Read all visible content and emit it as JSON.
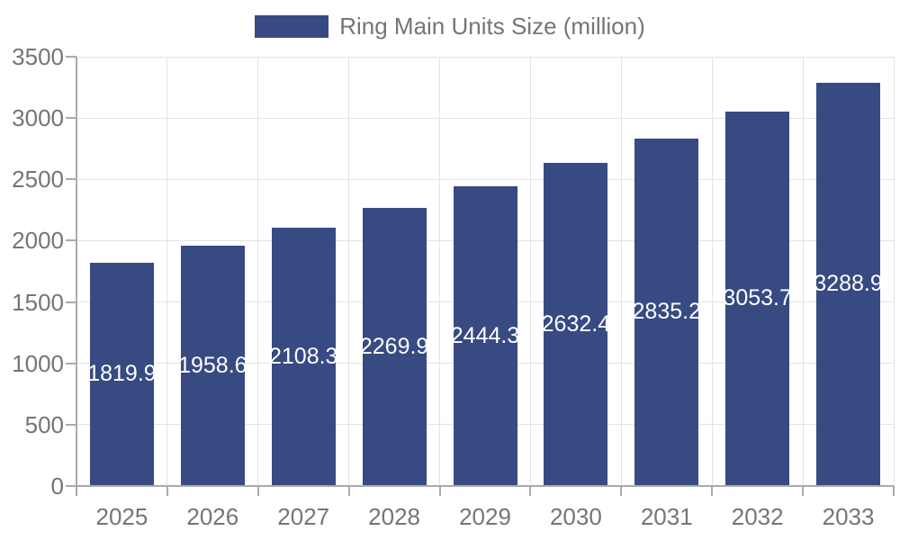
{
  "chart_data": {
    "type": "bar",
    "title": "Ring Main Units Size (million)",
    "categories": [
      "2025",
      "2026",
      "2027",
      "2028",
      "2029",
      "2030",
      "2031",
      "2032",
      "2033"
    ],
    "values": [
      1819.9,
      1958.6,
      2108.3,
      2269.9,
      2444.3,
      2632.4,
      2835.2,
      3053.7,
      3288.9
    ],
    "series_name": "Ring Main Units Size (million)",
    "xlabel": "",
    "ylabel": "",
    "ylim": [
      0,
      3500
    ],
    "yticks": [
      0,
      500,
      1000,
      1500,
      2000,
      2500,
      3000,
      3500
    ],
    "grid": true,
    "legend_position": "top",
    "colors": {
      "bar": "#374A82",
      "bar_label": "#FFFFFF",
      "axis_text": "#757575",
      "axis_line": "#AAAAAA",
      "gridline": "#E3E3E3"
    }
  }
}
